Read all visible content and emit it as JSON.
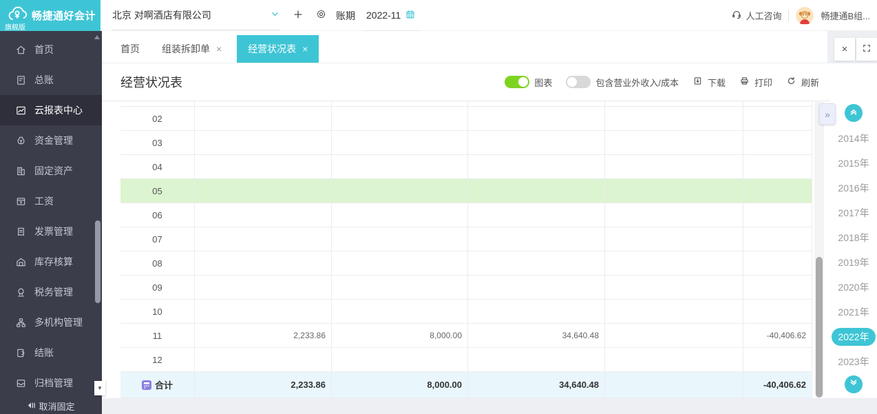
{
  "header": {
    "brand_name": "畅捷通好会计",
    "brand_edition": "旗舰版",
    "company": "北京 对啊酒店有限公司",
    "period_label": "账期",
    "period_value": "2022-11",
    "support_label": "人工咨询",
    "username": "畅捷通B组..."
  },
  "sidebar": {
    "items": [
      {
        "key": "home",
        "label": "首页",
        "active": false
      },
      {
        "key": "ledger",
        "label": "总账",
        "active": false
      },
      {
        "key": "cloud-report",
        "label": "云报表中心",
        "active": true
      },
      {
        "key": "funds",
        "label": "资金管理",
        "active": false
      },
      {
        "key": "fixed-assets",
        "label": "固定资产",
        "active": false
      },
      {
        "key": "salary",
        "label": "工资",
        "active": false
      },
      {
        "key": "invoice",
        "label": "发票管理",
        "active": false
      },
      {
        "key": "inventory",
        "label": "库存核算",
        "active": false
      },
      {
        "key": "tax",
        "label": "税务管理",
        "active": false
      },
      {
        "key": "multi-org",
        "label": "多机构管理",
        "active": false
      },
      {
        "key": "closing",
        "label": "结账",
        "active": false
      },
      {
        "key": "archive",
        "label": "归档管理",
        "active": false
      }
    ],
    "unpin_label": "取消固定"
  },
  "tabs": [
    {
      "key": "home",
      "label": "首页",
      "closable": false,
      "active": false
    },
    {
      "key": "assembly-order",
      "label": "组装拆卸单",
      "closable": true,
      "active": false
    },
    {
      "key": "business-status",
      "label": "经营状况表",
      "closable": true,
      "active": true
    }
  ],
  "toolbar": {
    "title": "经营状况表",
    "chart_toggle_label": "图表",
    "chart_toggle_on": true,
    "include_toggle_label": "包含营业外收入/成本",
    "include_toggle_on": false,
    "download_label": "下载",
    "print_label": "打印",
    "refresh_label": "刷新"
  },
  "table": {
    "rows": [
      {
        "num": "02",
        "values": [
          "",
          "",
          "",
          "",
          ""
        ],
        "highlight": false
      },
      {
        "num": "03",
        "values": [
          "",
          "",
          "",
          "",
          ""
        ],
        "highlight": false
      },
      {
        "num": "04",
        "values": [
          "",
          "",
          "",
          "",
          ""
        ],
        "highlight": false
      },
      {
        "num": "05",
        "values": [
          "",
          "",
          "",
          "",
          ""
        ],
        "highlight": true
      },
      {
        "num": "06",
        "values": [
          "",
          "",
          "",
          "",
          ""
        ],
        "highlight": false
      },
      {
        "num": "07",
        "values": [
          "",
          "",
          "",
          "",
          ""
        ],
        "highlight": false
      },
      {
        "num": "08",
        "values": [
          "",
          "",
          "",
          "",
          ""
        ],
        "highlight": false
      },
      {
        "num": "09",
        "values": [
          "",
          "",
          "",
          "",
          ""
        ],
        "highlight": false
      },
      {
        "num": "10",
        "values": [
          "",
          "",
          "",
          "",
          ""
        ],
        "highlight": false
      },
      {
        "num": "11",
        "values": [
          "2,233.86",
          "8,000.00",
          "34,640.48",
          "",
          "-40,406.62"
        ],
        "highlight": false
      },
      {
        "num": "12",
        "values": [
          "",
          "",
          "",
          "",
          ""
        ],
        "highlight": false
      }
    ],
    "total_label": "合计",
    "total_values": [
      "2,233.86",
      "8,000.00",
      "34,640.48",
      "",
      "-40,406.62"
    ]
  },
  "years": {
    "items": [
      "2014年",
      "2015年",
      "2016年",
      "2017年",
      "2018年",
      "2019年",
      "2020年",
      "2021年",
      "2022年",
      "2023年"
    ],
    "selected": "2022年"
  },
  "colors": {
    "accent_teal": "#3ec5d5",
    "toggle_on_green": "#7ed321",
    "highlight_row_green": "#dcf4cf",
    "total_row_blue": "#e9f6fc",
    "total_icon_purple": "#8d7fe0",
    "sidebar_bg": "#3c3d4b"
  }
}
